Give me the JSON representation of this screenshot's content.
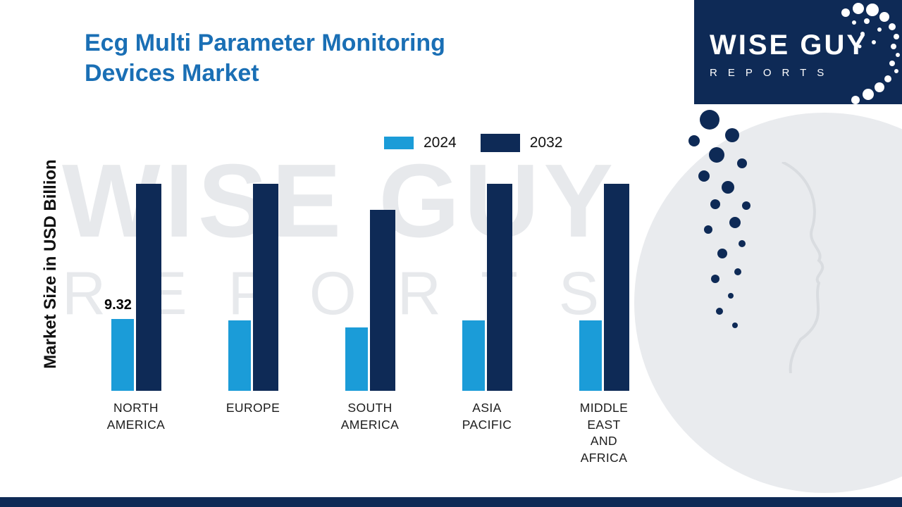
{
  "header": {
    "title_line1": "Ecg Multi Parameter Monitoring",
    "title_line2": "Devices Market"
  },
  "logo": {
    "name": "WISE GUY",
    "sub": "REPORTS"
  },
  "watermark": {
    "line1": "WISE GUY",
    "line2": "REPORTS"
  },
  "chart_data": {
    "type": "bar",
    "title": "Ecg Multi Parameter Monitoring Devices Market",
    "ylabel": "Market Size in USD Billion",
    "xlabel": "",
    "categories": [
      "NORTH\nAMERICA",
      "EUROPE",
      "SOUTH\nAMERICA",
      "ASIA\nPACIFIC",
      "MIDDLE\nEAST\nAND\nAFRICA"
    ],
    "series": [
      {
        "name": "2024",
        "color": "#1b9cd8",
        "values": [
          9.32,
          9.2,
          8.3,
          9.2,
          9.2
        ]
      },
      {
        "name": "2032",
        "color": "#0e2a56",
        "values": [
          27.0,
          27.0,
          23.6,
          27.0,
          27.0
        ]
      }
    ],
    "ylim": [
      0,
      28
    ],
    "grid": false,
    "legend_position": "top-center",
    "annotations": [
      {
        "series": "2024",
        "category_index": 0,
        "text": "9.32"
      }
    ]
  },
  "colors": {
    "title_blue": "#1a6fb5",
    "accent_blue": "#1b9cd8",
    "navy": "#0e2a56",
    "watermark_gray": "#e7e9ec",
    "circle_gray": "#e9ebee"
  }
}
